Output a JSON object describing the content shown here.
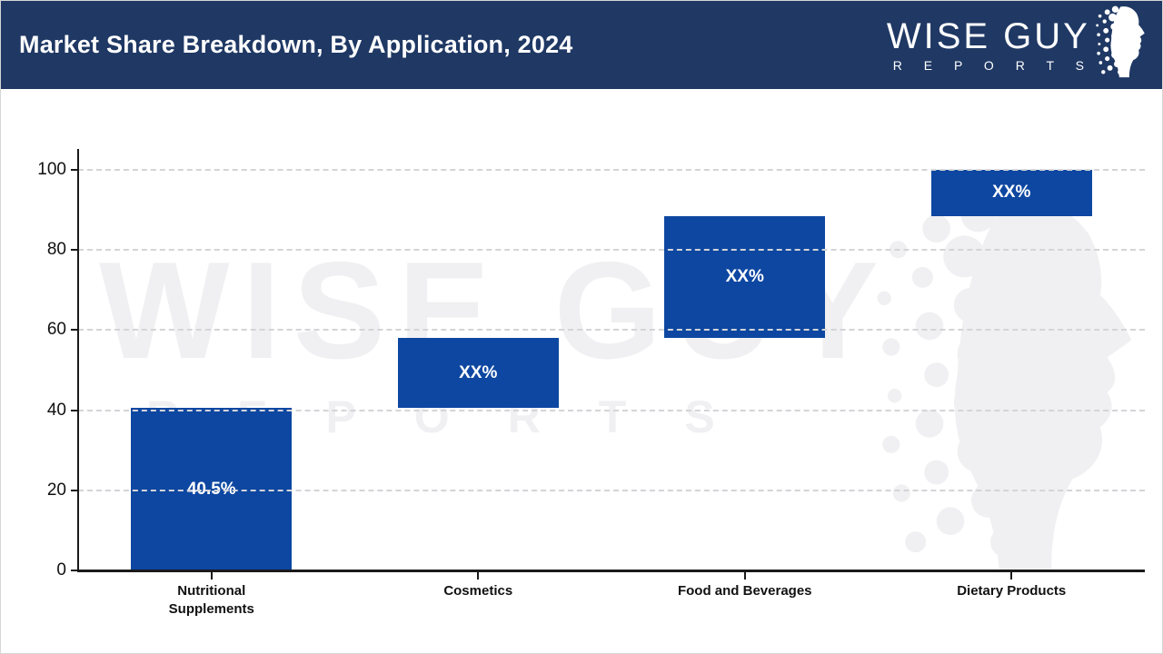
{
  "header": {
    "title": "Market Share Breakdown, By Application, 2024",
    "logo": {
      "wordmark": "WISE GUY",
      "subtext": "R E P O R T S"
    }
  },
  "watermark": {
    "line1": "WISE GUY",
    "line2": "REPORTS"
  },
  "chart_data": {
    "type": "bar",
    "subtype": "waterfall",
    "title": "Market Share Breakdown, By Application, 2024",
    "xlabel": "",
    "ylabel": "",
    "ylim": [
      0,
      100
    ],
    "yticks": [
      0,
      20,
      40,
      60,
      80,
      100
    ],
    "grid": "horizontal-dashed",
    "legend": "none",
    "categories": [
      "Nutritional\nSupplements",
      "Cosmetics",
      "Food and Beverages",
      "Dietary Products"
    ],
    "segments": [
      {
        "category": "Nutritional\nSupplements",
        "start": 0,
        "end": 40.5,
        "label": "40.5%"
      },
      {
        "category": "Cosmetics",
        "start": 40.5,
        "end": 58,
        "label": "XX%"
      },
      {
        "category": "Food and Beverages",
        "start": 58,
        "end": 88.5,
        "label": "XX%"
      },
      {
        "category": "Dietary Products",
        "start": 88.5,
        "end": 100,
        "label": "XX%"
      }
    ]
  },
  "colors": {
    "header_bg": "#1f3864",
    "bar": "#0d47a1",
    "bar_label": "#ffffff",
    "grid": "#d4d4d8",
    "axis": "#1a1a1a",
    "watermark": "#f0f0f2"
  }
}
